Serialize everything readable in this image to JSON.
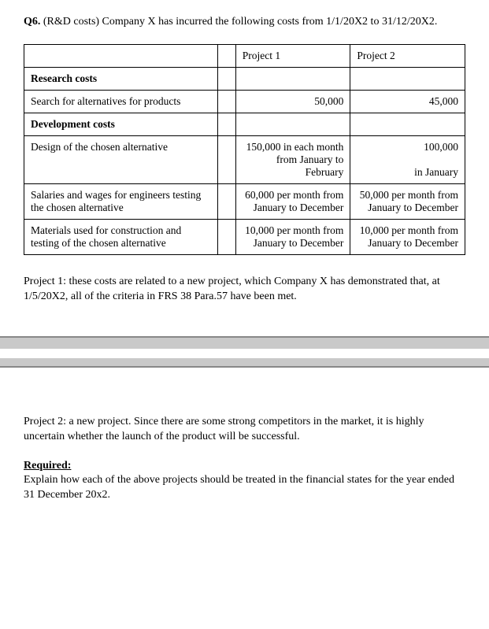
{
  "question": {
    "number": "Q6.",
    "title": "(R&D costs) Company X has incurred the following costs from 1/1/20X2 to 31/12/20X2."
  },
  "table": {
    "headers": {
      "c1": "",
      "c2": "Project 1",
      "c3": "Project 2"
    },
    "rows": [
      {
        "label": "Research costs",
        "p1": "",
        "p2": "",
        "is_section": true
      },
      {
        "label": "Search for alternatives for products",
        "p1": "50,000",
        "p2": "45,000"
      },
      {
        "label": "Development costs",
        "p1": "",
        "p2": "",
        "is_section": true
      },
      {
        "label": "Design of the chosen alternative",
        "p1": "150,000 in each month from January to February",
        "p2": "100,000\n\nin January"
      },
      {
        "label": "Salaries and wages for engineers testing the chosen alternative",
        "p1": "60,000 per month from January to December",
        "p2": "50,000 per month from January to December"
      },
      {
        "label": "Materials used for construction and testing of the chosen alternative",
        "p1": "10,000 per month from January to December",
        "p2": "10,000 per month from January to December"
      }
    ]
  },
  "note_project1": "Project 1: these costs are related to a new project, which Company X has demonstrated that, at 1/5/20X2, all of the criteria in FRS 38 Para.57 have been met.",
  "note_project2": "Project 2: a new project. Since there are some strong competitors in the market, it is highly uncertain whether the launch of the product will be successful.",
  "required_label": "Required:",
  "required_text": "Explain how each of the above projects should be treated in the financial states for the year ended 31 December 20x2.",
  "style": {
    "border_color": "#000000",
    "text_color": "#000000",
    "bg_color": "#ffffff",
    "page_break_bg": "#c9c9c9",
    "fontsize_body": 14,
    "fontsize_table": 13.5,
    "col_widths_pct": [
      44,
      4,
      26,
      26
    ]
  }
}
